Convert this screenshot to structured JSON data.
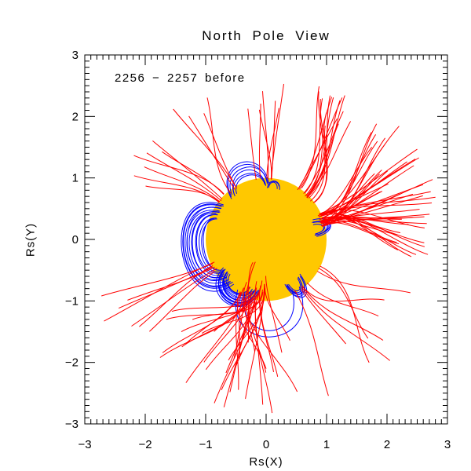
{
  "chart_data": {
    "type": "line",
    "title": "North Pole View",
    "annotation": "2256 − 2257 before",
    "xlabel": "Rs(X)",
    "ylabel": "Rs(Y)",
    "xlim": [
      -3,
      3
    ],
    "ylim": [
      -3,
      3
    ],
    "x_ticks": [
      "−3",
      "−2",
      "−1",
      "0",
      "1",
      "2",
      "3"
    ],
    "y_ticks": [
      "−3",
      "−2",
      "−1",
      "0",
      "1",
      "2",
      "3"
    ],
    "x_tick_values": [
      -3,
      -2,
      -1,
      0,
      1,
      2,
      3
    ],
    "y_tick_values": [
      -3,
      -2,
      -1,
      0,
      1,
      2,
      3
    ],
    "minor_ticks_per_interval": 9,
    "grid": false,
    "legend": "none",
    "sun": {
      "x": 0,
      "y": 0,
      "radius": 1,
      "color": "#FFC800"
    },
    "colors": {
      "open_field": "#FF0000",
      "closed_field": "#0000FF",
      "axis": "#000000",
      "background": "#FFFFFF"
    },
    "seed": 11,
    "field_line_bundles": [
      {
        "name": "right-fan",
        "kind": "open",
        "count": 46,
        "foot_angle": [
          12,
          26
        ],
        "foot_r": [
          0.93,
          1.02
        ],
        "dir": [
          -24,
          60
        ],
        "len": [
          1.1,
          1.95
        ],
        "curve": 0.3
      },
      {
        "name": "upper-right-fan",
        "kind": "open",
        "count": 16,
        "foot_angle": [
          36,
          58
        ],
        "foot_r": [
          0.95,
          1.02
        ],
        "dir": [
          60,
          86
        ],
        "len": [
          1.25,
          1.85
        ],
        "curve": 0.35
      },
      {
        "name": "top-fan",
        "kind": "open",
        "count": 7,
        "foot_angle": [
          84,
          100
        ],
        "foot_r": [
          0.95,
          1.02
        ],
        "dir": [
          80,
          100
        ],
        "len": [
          1.1,
          1.6
        ],
        "curve": 0.3
      },
      {
        "name": "upper-left-fan",
        "kind": "open",
        "count": 7,
        "foot_angle": [
          132,
          144
        ],
        "foot_r": [
          0.95,
          1.02
        ],
        "dir": [
          140,
          168
        ],
        "len": [
          1.2,
          1.7
        ],
        "curve": 0.35
      },
      {
        "name": "upper-left-steep",
        "kind": "open",
        "count": 4,
        "foot_angle": [
          120,
          134
        ],
        "foot_r": [
          0.95,
          1.02
        ],
        "dir": [
          104,
          130
        ],
        "len": [
          1.3,
          1.8
        ],
        "curve": 0.35
      },
      {
        "name": "bottom-fan",
        "kind": "open",
        "count": 30,
        "foot_angle": [
          243,
          270
        ],
        "foot_r": [
          0.72,
          1.0
        ],
        "dir": [
          196,
          298
        ],
        "len": [
          1.0,
          1.9
        ],
        "curve": 0.35
      },
      {
        "name": "bottom-inner",
        "kind": "open",
        "count": 5,
        "foot_angle": [
          238,
          272
        ],
        "foot_r": [
          0.35,
          0.7
        ],
        "dir": [
          248,
          282
        ],
        "len": [
          1.2,
          2.1
        ],
        "curve": 0.2
      },
      {
        "name": "left-down-fan",
        "kind": "open",
        "count": 7,
        "foot_angle": [
          203,
          216
        ],
        "foot_r": [
          0.93,
          1.0
        ],
        "dir": [
          196,
          222
        ],
        "len": [
          1.1,
          2.1
        ],
        "curve": 0.3
      },
      {
        "name": "bottom-right-fan",
        "kind": "open",
        "count": 9,
        "foot_angle": [
          298,
          336
        ],
        "foot_r": [
          0.93,
          1.0
        ],
        "dir": [
          288,
          352
        ],
        "len": [
          0.9,
          1.9
        ],
        "curve": 0.4
      },
      {
        "name": "left-arcade",
        "kind": "closed",
        "count": 14,
        "a1": [
          158,
          -1.2
        ],
        "a2": [
          212,
          1.6
        ],
        "apex": [
          1.12,
          0.048
        ],
        "foot_r": 0.9,
        "jitter": 3
      },
      {
        "name": "bottomleft-arcade",
        "kind": "closed",
        "count": 13,
        "a1": [
          222,
          -0.7
        ],
        "a2": [
          252,
          0.9
        ],
        "apex": [
          1.03,
          0.022
        ],
        "foot_r": 0.85,
        "jitter": 3
      },
      {
        "name": "top-arcade",
        "kind": "closed",
        "count": 6,
        "a1": [
          92,
          -1.0
        ],
        "a2": [
          124,
          1.5
        ],
        "apex": [
          1.1,
          0.055
        ],
        "foot_r": 0.9,
        "jitter": 2
      },
      {
        "name": "right-limb-loops",
        "kind": "closed",
        "count": 6,
        "a1": [
          6,
          -0.5
        ],
        "a2": [
          18,
          0.7
        ],
        "apex": [
          0.98,
          0.025
        ],
        "foot_r": 0.82,
        "jitter": 2
      },
      {
        "name": "bottomright-limb-loops",
        "kind": "closed",
        "count": 6,
        "a1": [
          296,
          -0.7
        ],
        "a2": [
          310,
          0.9
        ],
        "apex": [
          0.99,
          0.03
        ],
        "foot_r": 0.82,
        "jitter": 2
      },
      {
        "name": "big-bottom-loop",
        "kind": "closed",
        "count": 2,
        "a1": [
          240,
          8
        ],
        "a2": [
          305,
          -7
        ],
        "apex": [
          1.78,
          -0.2
        ],
        "foot_r": 0.92,
        "jitter": 1
      },
      {
        "name": "top-tiny-loops",
        "kind": "closed",
        "count": 3,
        "a1": [
          77,
          -1
        ],
        "a2": [
          87,
          1
        ],
        "apex": [
          0.93,
          0.02
        ],
        "foot_r": 0.86,
        "jitter": 1
      }
    ]
  }
}
